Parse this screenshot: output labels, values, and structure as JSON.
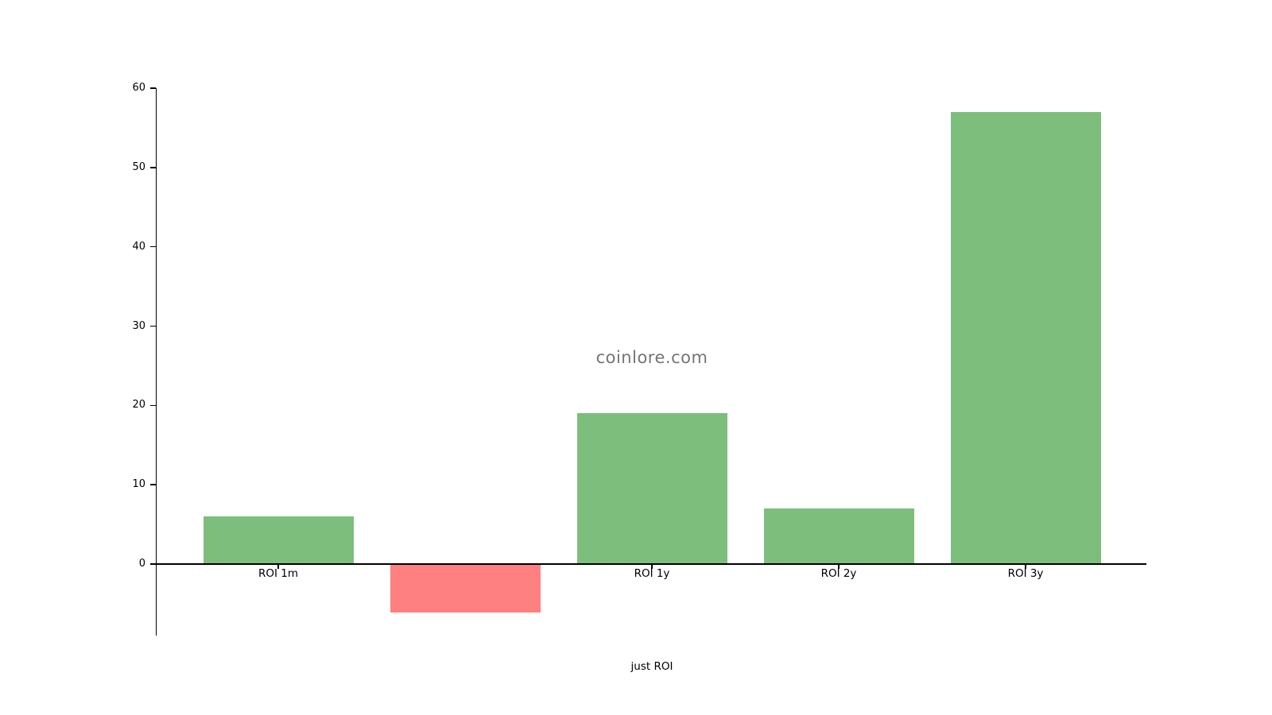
{
  "page": {
    "background": "#ffffff"
  },
  "chart_data": {
    "type": "bar",
    "categories": [
      "ROI 1m",
      "",
      "ROI 1y",
      "ROI 2y",
      "ROI 3y"
    ],
    "values": [
      6,
      -6,
      19,
      7,
      57
    ],
    "bar_colors": [
      "#7dbe7d",
      "#ff8080",
      "#7dbe7d",
      "#7dbe7d",
      "#7dbe7d"
    ],
    "positive_color": "#7dbe7d",
    "negative_color": "#ff8080",
    "title": "",
    "xlabel": "just ROI",
    "ylabel": "",
    "ylim": [
      -9,
      60
    ],
    "yticks": [
      0,
      10,
      20,
      30,
      40,
      50,
      60
    ],
    "grid": false,
    "legend": false,
    "watermark": "coinlore.com",
    "axis_color": "#000000",
    "tick_text_color": "#000000",
    "watermark_color": "#757575"
  }
}
